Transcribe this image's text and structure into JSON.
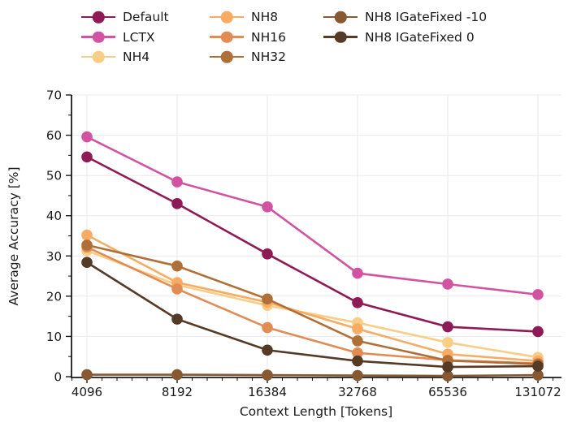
{
  "chart_data": {
    "type": "line",
    "title": "",
    "xlabel": "Context Length [Tokens]",
    "ylabel": "Average Accuracy [%]",
    "x_scale": "log2",
    "x": [
      4096,
      8192,
      16384,
      32768,
      65536,
      131072
    ],
    "x_tick_labels": [
      "4096",
      "8192",
      "16384",
      "32768",
      "65536",
      "131072"
    ],
    "ylim": [
      0,
      70
    ],
    "y_ticks": [
      0,
      10,
      20,
      30,
      40,
      50,
      60,
      70
    ],
    "grid": true,
    "legend_position": "top",
    "legend_columns": 3,
    "marker": "circle",
    "series": [
      {
        "name": "Default",
        "color": "#8e1b55",
        "values": [
          54.6,
          43.0,
          30.5,
          18.4,
          12.4,
          11.2
        ]
      },
      {
        "name": "LCTX",
        "color": "#d253a1",
        "values": [
          59.6,
          48.4,
          42.2,
          25.7,
          23.0,
          20.4
        ]
      },
      {
        "name": "NH4",
        "color": "#f8cd85",
        "values": [
          31.3,
          22.8,
          17.7,
          13.4,
          8.5,
          4.8
        ]
      },
      {
        "name": "NH8",
        "color": "#f7ab63",
        "values": [
          35.2,
          23.4,
          18.5,
          11.9,
          5.6,
          3.9
        ]
      },
      {
        "name": "NH16",
        "color": "#e28c53",
        "values": [
          32.2,
          21.8,
          12.2,
          5.9,
          4.1,
          3.3
        ]
      },
      {
        "name": "NH32",
        "color": "#b16f38",
        "values": [
          32.7,
          27.5,
          19.3,
          8.9,
          4.0,
          3.1
        ]
      },
      {
        "name": "NH8 IGateFixed -10",
        "color": "#875832",
        "values": [
          0.5,
          0.5,
          0.4,
          0.3,
          0.2,
          0.4
        ]
      },
      {
        "name": "NH8 IGateFixed 0",
        "color": "#553a26",
        "values": [
          28.4,
          14.3,
          6.6,
          3.9,
          2.4,
          2.6
        ]
      }
    ],
    "colors": {
      "text": "#1a1a1a",
      "spine": "#1a1a1a",
      "grid": "#ebebeb",
      "background": "#ffffff"
    }
  }
}
